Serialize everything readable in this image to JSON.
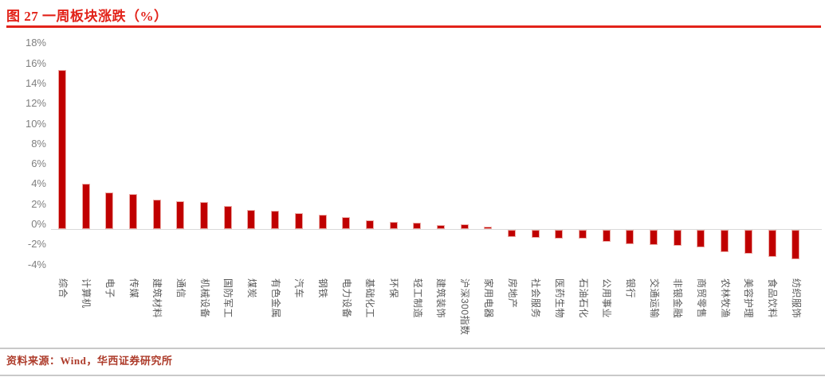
{
  "figure": {
    "title": "图 27 一周板块涨跌（%）",
    "source": "资料来源：Wind，华西证券研究所"
  },
  "colors": {
    "accent_red": "#E2231A",
    "bar_fill": "#C00000",
    "bar_border": "#ECA9A4",
    "tick_text": "#7F7F7F",
    "category_text": "#595959",
    "axis_line": "#D9D9D9",
    "source_text": "#AD3B2A",
    "divider": "#C9C9C9"
  },
  "chart_data": {
    "type": "bar",
    "title": "图 27 一周板块涨跌（%）",
    "categories": [
      "综合",
      "计算机",
      "电子",
      "传媒",
      "建筑材料",
      "通信",
      "机械设备",
      "国防军工",
      "煤炭",
      "有色金属",
      "汽车",
      "钢铁",
      "电力设备",
      "基础化工",
      "环保",
      "轻工制造",
      "建筑装饰",
      "沪深300指数",
      "家用电器",
      "房地产",
      "社会服务",
      "医药生物",
      "石油石化",
      "公用事业",
      "银行",
      "交通运输",
      "非银金融",
      "商贸零售",
      "农林牧渔",
      "美容护理",
      "食品饮料",
      "纺织服饰"
    ],
    "values": [
      15.8,
      4.5,
      3.6,
      3.5,
      2.9,
      2.8,
      2.7,
      2.3,
      1.9,
      1.8,
      1.6,
      1.4,
      1.2,
      0.9,
      0.7,
      0.6,
      0.4,
      0.5,
      0.2,
      -0.7,
      -0.8,
      -0.9,
      -0.9,
      -1.2,
      -1.4,
      -1.5,
      -1.6,
      -1.7,
      -2.2,
      -2.4,
      -2.7,
      -2.9
    ],
    "unit": "%",
    "xlabel": "",
    "ylabel": "",
    "ylim": [
      -4,
      18
    ],
    "ytick_step": 2,
    "ytick_labels": [
      "18%",
      "16%",
      "14%",
      "12%",
      "10%",
      "8%",
      "6%",
      "4%",
      "2%",
      "0%",
      "-2%",
      "-4%"
    ],
    "grid": false,
    "legend": "none",
    "bar_color": "#C00000"
  }
}
